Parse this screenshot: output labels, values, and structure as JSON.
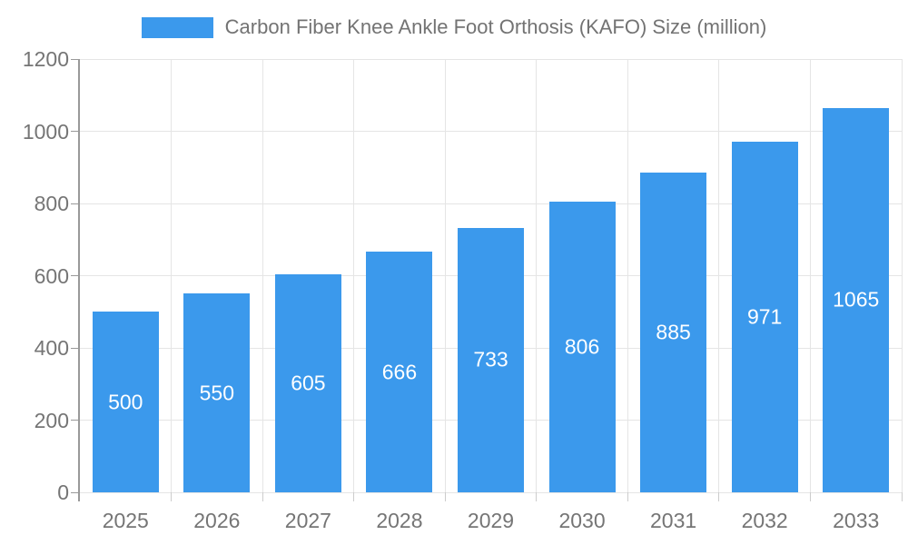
{
  "legend": {
    "label": "Carbon Fiber Knee Ankle Foot Orthosis (KAFO) Size (million)"
  },
  "chart_data": {
    "type": "bar",
    "title": "Carbon Fiber Knee Ankle Foot Orthosis (KAFO) Size (million)",
    "categories": [
      "2025",
      "2026",
      "2027",
      "2028",
      "2029",
      "2030",
      "2031",
      "2032",
      "2033"
    ],
    "series": [
      {
        "name": "Carbon Fiber Knee Ankle Foot Orthosis (KAFO) Size (million)",
        "values": [
          500,
          550,
          605,
          666,
          733,
          806,
          885,
          971,
          1065
        ]
      }
    ],
    "xlabel": "",
    "ylabel": "",
    "ylim": [
      0,
      1200
    ],
    "yticks": [
      0,
      200,
      400,
      600,
      800,
      1000,
      1200
    ],
    "grid": true,
    "legend_position": "top",
    "bar_labels_inside": true,
    "colors": {
      "bar": "#3b99ec",
      "bar_label": "#ffffff",
      "grid": "#e5e5e5",
      "axis": "#999999",
      "bottom_tick": "#cccccc",
      "tick_text": "#757575",
      "legend_text": "#737373",
      "background": "#ffffff"
    }
  }
}
